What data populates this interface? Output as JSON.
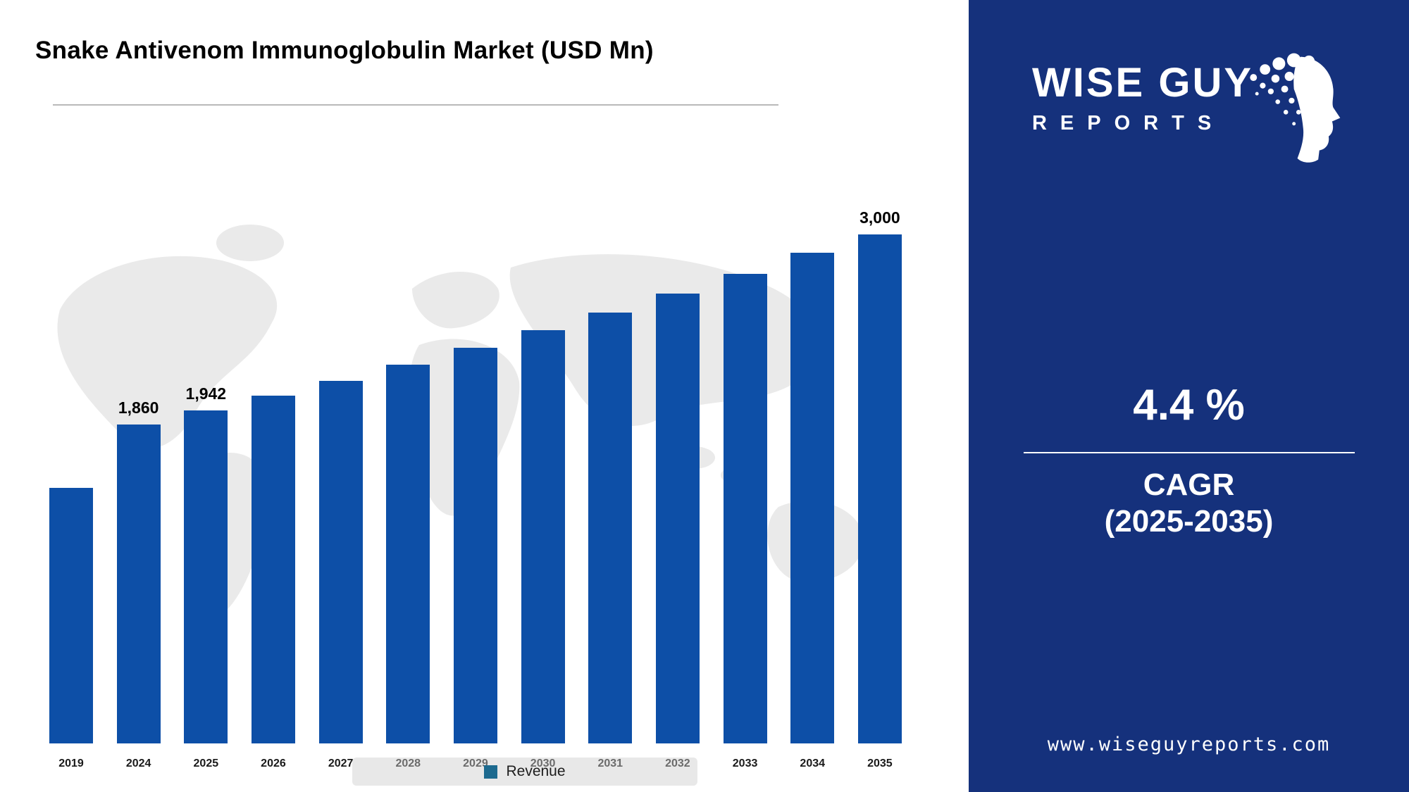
{
  "title": "Snake Antivenom Immunoglobulin Market (USD Mn)",
  "chart_data": {
    "type": "bar",
    "title": "Snake Antivenom Immunoglobulin Market (USD Mn)",
    "xlabel": "",
    "ylabel": "",
    "categories": [
      "2019",
      "2024",
      "2025",
      "2026",
      "2027",
      "2028",
      "2029",
      "2030",
      "2031",
      "2032",
      "2033",
      "2034",
      "2035"
    ],
    "values": [
      1490,
      1860,
      1942,
      2027,
      2116,
      2209,
      2306,
      2408,
      2514,
      2625,
      2740,
      2861,
      3000
    ],
    "value_labels": [
      "",
      "1,860",
      "1,942",
      "",
      "",
      "",
      "",
      "",
      "",
      "",
      "",
      "",
      "3,000"
    ],
    "ylim": [
      0,
      3120
    ],
    "grid": false,
    "bar_color": "#0d4fa7",
    "legend_position": "bottom",
    "legend": [
      {
        "label": "Revenue",
        "color": "#1d6a8f"
      }
    ]
  },
  "side_panel": {
    "background": "#15317c",
    "logo": {
      "line1": "WISE GUY",
      "line2": "REPORTS"
    },
    "cagr_value": "4.4 %",
    "cagr_label_line1": "CAGR",
    "cagr_label_line2": "(2025-2035)",
    "website": "www.wiseguyreports.com"
  },
  "colors": {
    "watermark": "#eaeaea",
    "title_rule": "#b9b9b9"
  }
}
